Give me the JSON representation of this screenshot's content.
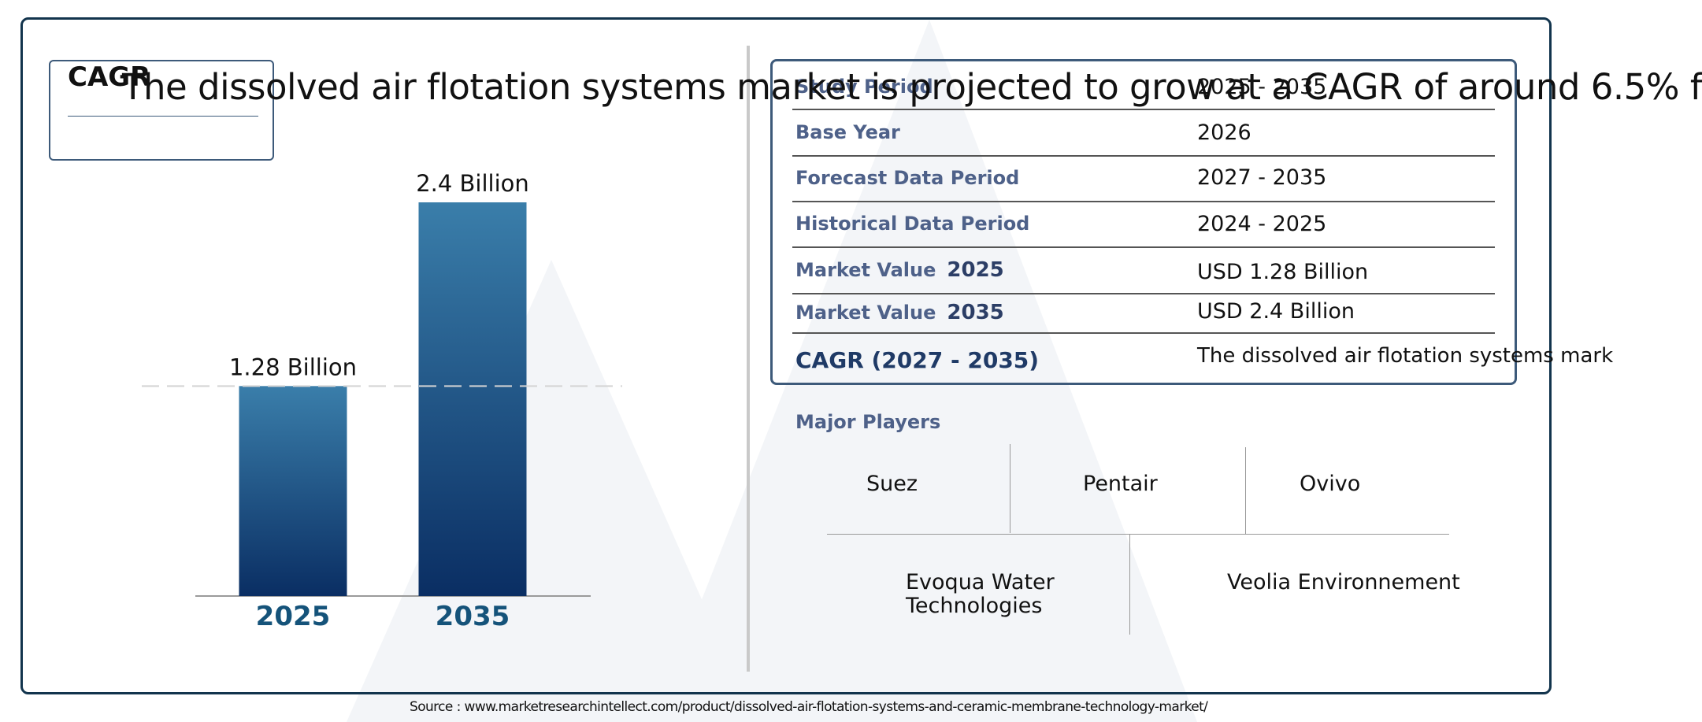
{
  "headline": "The dissolved air flotation systems market is projected to grow at a CAGR of around 6.5% f",
  "cagr_box_label": "CAGR",
  "chart_data": {
    "type": "bar",
    "categories": [
      "2025",
      "2035"
    ],
    "values": [
      1.28,
      2.4
    ],
    "value_labels": [
      "1.28 Billion",
      "2.4 Billion"
    ],
    "title": "",
    "xlabel": "",
    "ylabel": "",
    "ylim": [
      0,
      2.4
    ],
    "grid": false,
    "reference_line": 1.28,
    "colors": {
      "bar_top": "#3a7eaa",
      "bar_bottom": "#0a2e63",
      "tick": "#15537a"
    }
  },
  "info_table": {
    "rows": [
      {
        "label": "Study Period",
        "year": "",
        "value": "2025 - 2035"
      },
      {
        "label": "Base Year",
        "year": "",
        "value": "2026"
      },
      {
        "label": "Forecast Data Period",
        "year": "",
        "value": "2027 - 2035"
      },
      {
        "label": "Historical Data Period",
        "year": "",
        "value": "2024 - 2025"
      },
      {
        "label": "Market Value",
        "year": "2025",
        "value": "USD 1.28 Billion"
      },
      {
        "label": "Market Value",
        "year": "2035",
        "value": "USD 2.4 Billion"
      },
      {
        "label": "CAGR (2027 - 2035)",
        "year": "",
        "value": "The dissolved air flotation systems mark"
      }
    ]
  },
  "players": {
    "title": "Major Players",
    "names": [
      "Suez",
      "Pentair",
      "Ovivo",
      "Evoqua Water Technologies",
      "Veolia Environnement"
    ]
  },
  "source": "Source : www.marketresearchintellect.com/product/dissolved-air-flotation-systems-and-ceramic-membrane-technology-market/",
  "colors": {
    "frame": "#12344d",
    "label": "#4e6189"
  }
}
